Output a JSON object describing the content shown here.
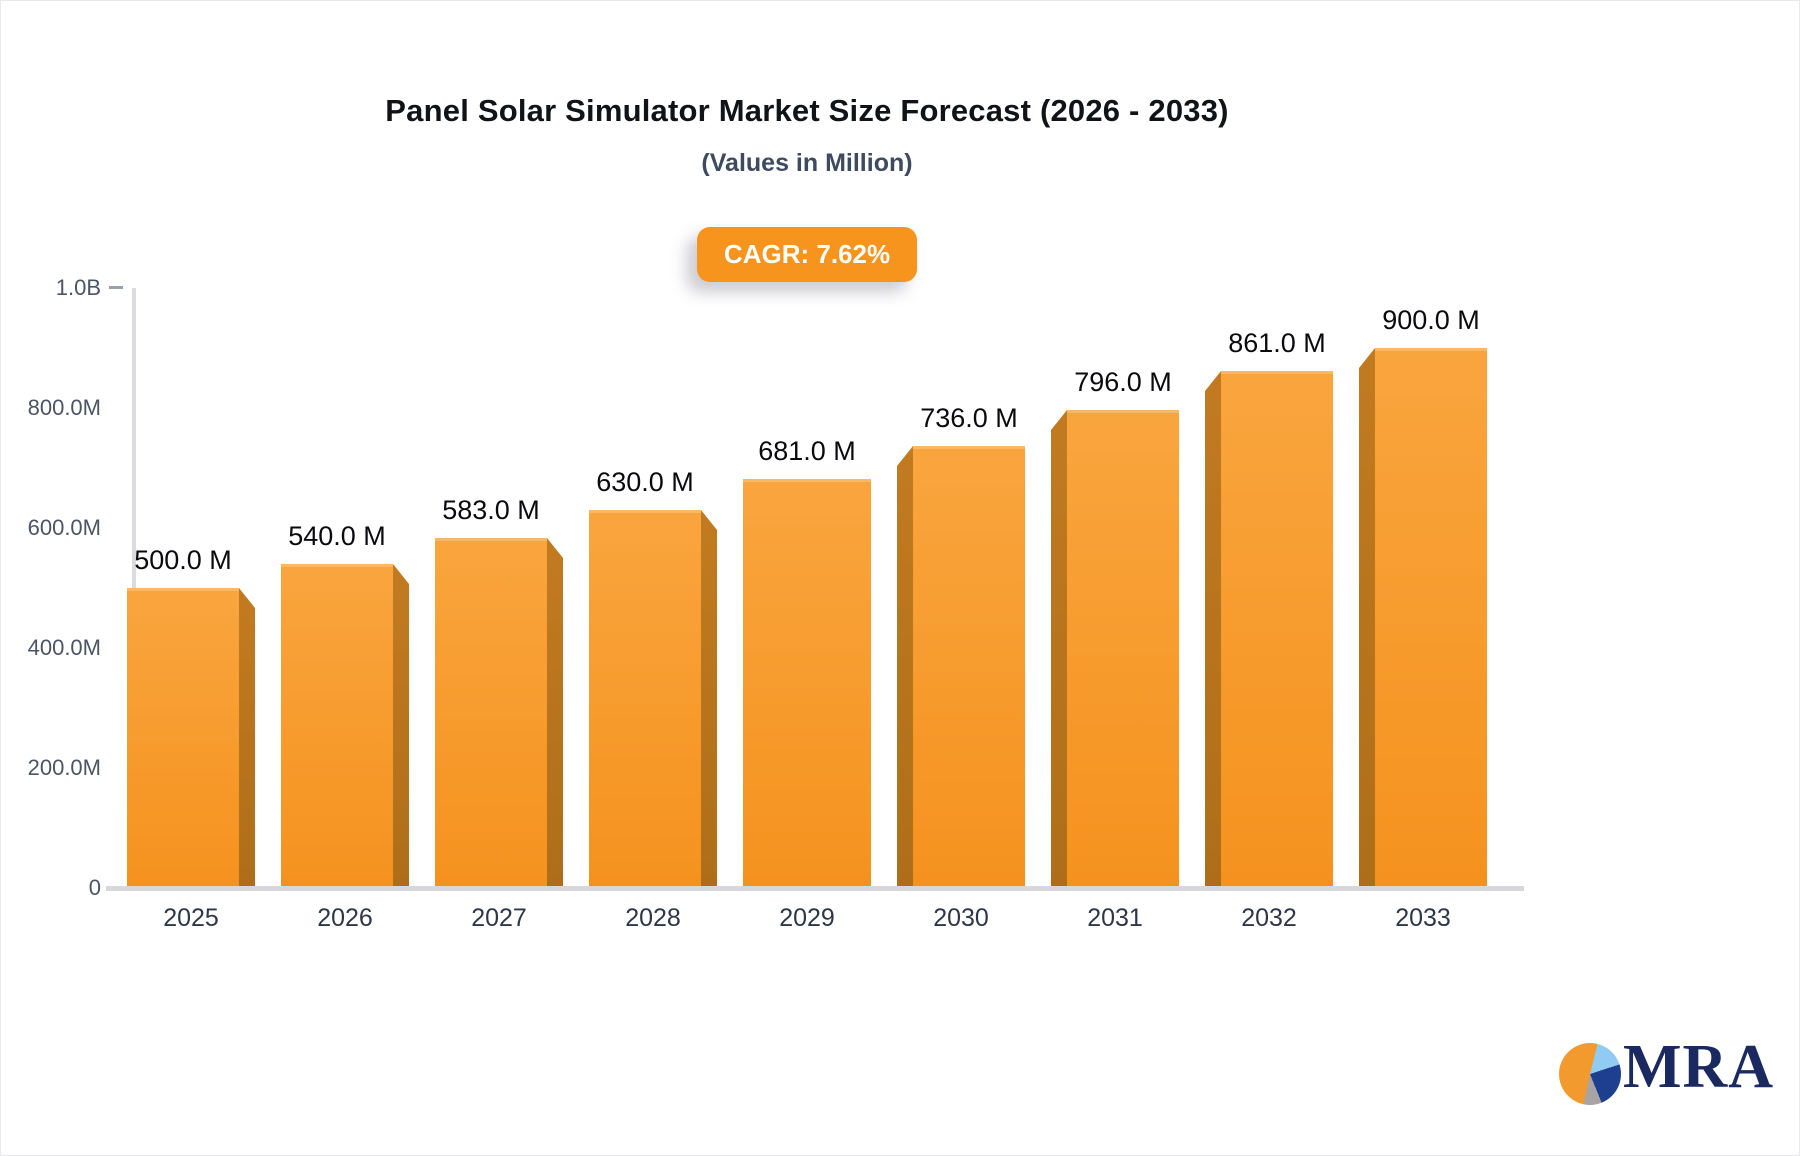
{
  "chart_data": {
    "type": "bar",
    "title": "Panel Solar Simulator Market Size Forecast (2026 - 2033)",
    "subtitle": "(Values in Million)",
    "annotation": "CAGR: 7.62%",
    "categories": [
      "2025",
      "2026",
      "2027",
      "2028",
      "2029",
      "2030",
      "2031",
      "2032",
      "2033"
    ],
    "values": [
      500,
      540,
      583,
      630,
      681,
      736,
      796,
      861,
      900
    ],
    "bar_labels": [
      "500.0 M",
      "540.0 M",
      "583.0 M",
      "630.0 M",
      "681.0 M",
      "736.0 M",
      "796.0 M",
      "861.0 M",
      "900.0 M"
    ],
    "value_unit": "Million",
    "xlabel": "",
    "ylabel": "",
    "ylim": [
      0,
      1000
    ],
    "yticks": [
      {
        "value": 1000,
        "label": "1.0B",
        "dash": true
      },
      {
        "value": 800,
        "label": "800.0M",
        "dash": false
      },
      {
        "value": 600,
        "label": "600.0M",
        "dash": false
      },
      {
        "value": 400,
        "label": "400.0M",
        "dash": false
      },
      {
        "value": 200,
        "label": "200.0M",
        "dash": false
      },
      {
        "value": 0,
        "label": "0",
        "dash": true
      }
    ],
    "grid": false,
    "legend": false,
    "bar_style": "3d-bevel"
  },
  "logo": {
    "text": "MRA"
  },
  "colors": {
    "accent": "#F7941E",
    "bar_face_top": "#F9A53E",
    "bar_face_bottom": "#F5921E",
    "bar_face_edge": "#F9B864",
    "bar_side_top": "#C17A20",
    "bar_side_bottom": "#AE6E19",
    "axis": "#D8D8DC",
    "title_text": "#111318",
    "subtitle_text": "#3E4A5E",
    "tick_text": "#4C5565",
    "category_text": "#2D3747",
    "value_text": "#0B0B0F",
    "badge_text": "#FFFFFF",
    "logo_navy": "#1B2961",
    "pie_orange": "#F29A2E",
    "pie_lightblue": "#8FCBF2",
    "pie_navy": "#1E3F8F",
    "pie_gray": "#A8A4A5"
  }
}
